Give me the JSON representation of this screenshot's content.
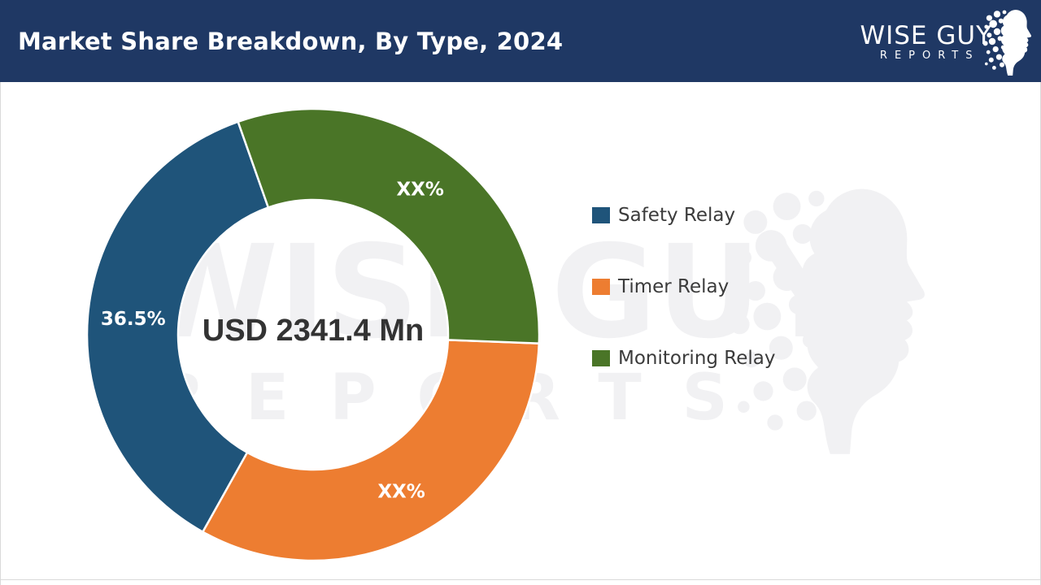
{
  "header": {
    "title": "Market Share Breakdown, By Type, 2024",
    "logo": {
      "line1": "WISE GUY",
      "line2": "REPORTS"
    }
  },
  "watermark": {
    "line1": "WISE GUY",
    "line2": "REPORTS"
  },
  "chart_data": {
    "type": "pie",
    "variant": "donut",
    "title": "Market Share Breakdown, By Type, 2024",
    "center_label": "USD 2341.4 Mn",
    "hole_ratio": 0.6,
    "start_angle_deg": 109.4,
    "direction": "counterclockwise",
    "legend_position": "right",
    "total_pct": 100,
    "segments": [
      {
        "name": "Safety Relay",
        "label": "36.5%",
        "value_pct": 36.5,
        "color": "#1f547a"
      },
      {
        "name": "Timer Relay",
        "label": "XX%",
        "value_pct": 32.5,
        "color": "#ed7d31"
      },
      {
        "name": "Monitoring Relay",
        "label": "XX%",
        "value_pct": 31.0,
        "color": "#4a7527"
      }
    ]
  },
  "colors": {
    "header_bg": "#1f3864",
    "slice_label_text": "#ffffff",
    "center_label_text": "#333333",
    "legend_text": "#3b3b3b",
    "watermark": "#f1f1f3",
    "frame_line": "#d9d9d9"
  }
}
